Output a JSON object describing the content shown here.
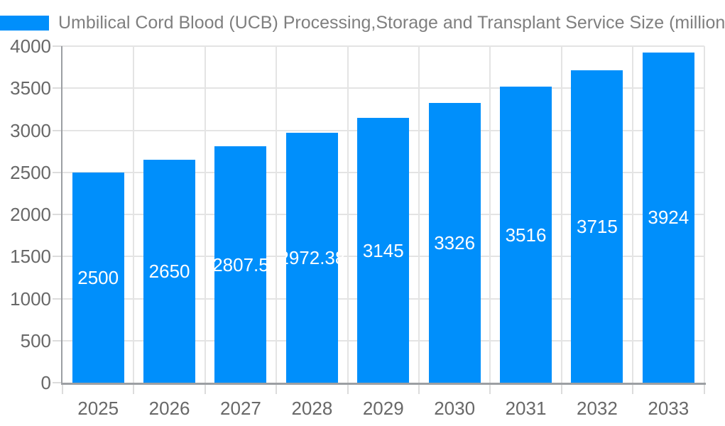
{
  "legend": {
    "series_label": "Umbilical Cord Blood (UCB) Processing,Storage and Transplant Service Size (million"
  },
  "chart_data": {
    "type": "bar",
    "title": "Umbilical Cord Blood (UCB) Processing,Storage and Transplant Service Size (million",
    "categories": [
      "2025",
      "2026",
      "2027",
      "2028",
      "2029",
      "2030",
      "2031",
      "2032",
      "2033"
    ],
    "series": [
      {
        "name": "Umbilical Cord Blood (UCB) Processing,Storage and Transplant Service Size (million",
        "values": [
          2500,
          2650,
          2807.5,
          2972.38,
          3145,
          3326,
          3516,
          3715,
          3924
        ]
      }
    ],
    "value_labels": [
      "2500",
      "2650",
      "2807.5",
      "2972.38",
      "3145",
      "3326",
      "3516",
      "3715",
      "3924"
    ],
    "value_label_position": "inside-center",
    "xlabel": "",
    "ylabel": "",
    "ylim": [
      0,
      4000
    ],
    "yticks": [
      0,
      500,
      1000,
      1500,
      2000,
      2500,
      3000,
      3500,
      4000
    ],
    "grid": true,
    "legend_position": "top-left",
    "colors": {
      "bar": "#008FFB",
      "value_label": "#ffffff",
      "axis_label": "#686868",
      "legend_text": "#7f7f7f",
      "gridline": "#e4e4e4",
      "tick": "#dcdcdc",
      "axis_line": "#9c9fa3"
    }
  }
}
